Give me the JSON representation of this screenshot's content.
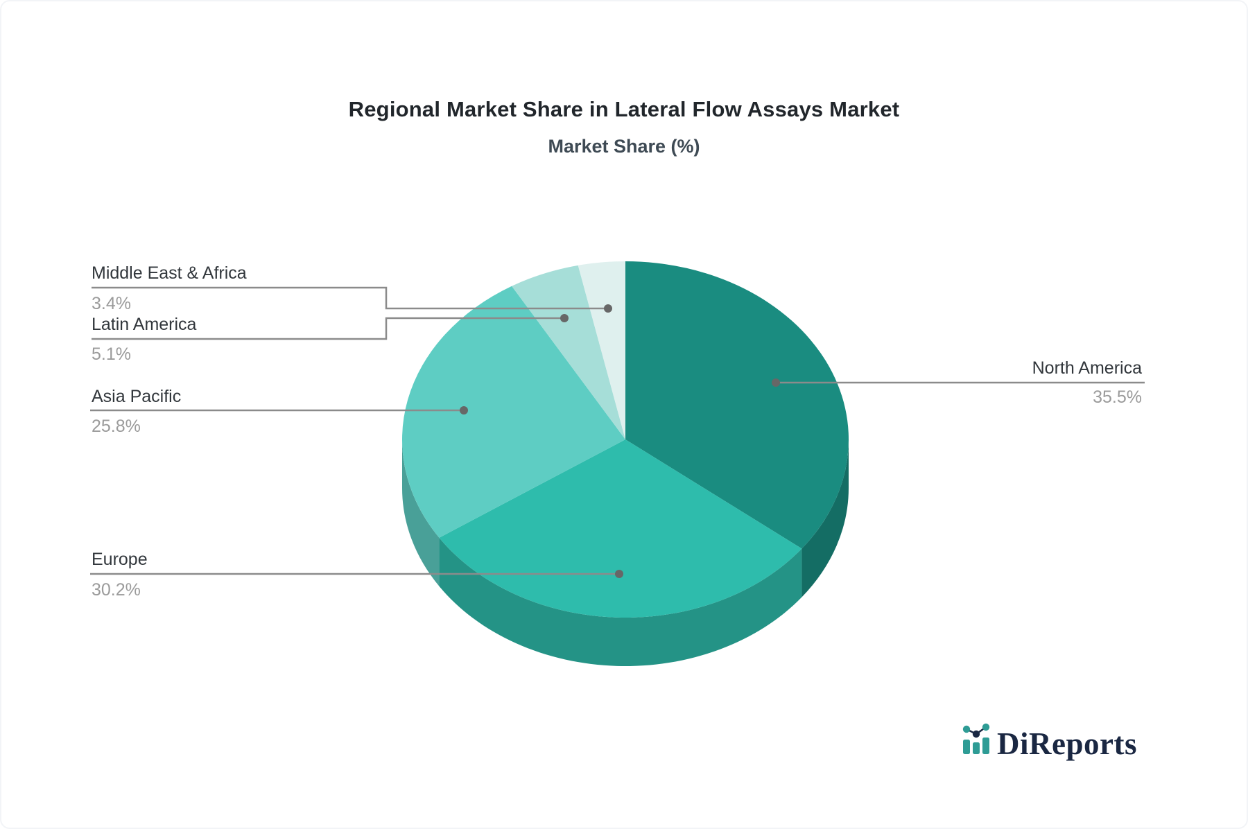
{
  "logo": {
    "text": "DiReports",
    "icon": "bar-chart-trend-icon"
  },
  "colors": {
    "leader_line": "#8b8b8b",
    "leader_dot": "#676767",
    "label_text": "#32373c",
    "pct_text": "#9b9b9b",
    "title_text": "#21262b",
    "subtitle_text": "#3e4a54",
    "logo_navy": "#1a2742",
    "logo_teal": "#2e9c95"
  },
  "chart_data": {
    "type": "pie",
    "title": "Regional Market Share in Lateral Flow Assays Market",
    "subtitle": "Market Share (%)",
    "unit": "%",
    "style": "3d",
    "start_angle_deg": 0,
    "direction": "clockwise",
    "legend_position": "none",
    "slices": [
      {
        "label": "North America",
        "value": 35.5,
        "pct_label": "35.5%",
        "color": "#1a8c80"
      },
      {
        "label": "Europe",
        "value": 30.2,
        "pct_label": "30.2%",
        "color": "#2ebcac"
      },
      {
        "label": "Asia Pacific",
        "value": 25.8,
        "pct_label": "25.8%",
        "color": "#5ecdc3"
      },
      {
        "label": "Latin America",
        "value": 5.1,
        "pct_label": "5.1%",
        "color": "#a6ded8"
      },
      {
        "label": "Middle East & Africa",
        "value": 3.4,
        "pct_label": "3.4%",
        "color": "#dff0ee"
      }
    ]
  }
}
